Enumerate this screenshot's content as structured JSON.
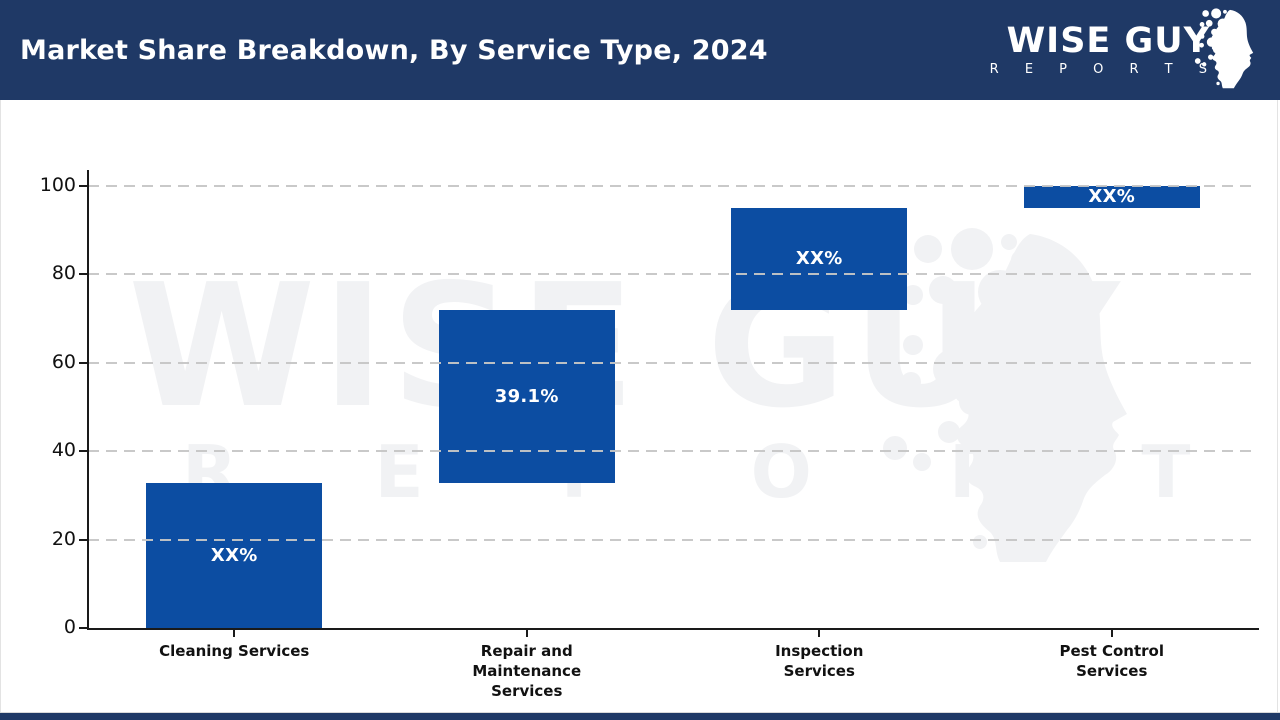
{
  "header": {
    "title": "Market Share Breakdown, By Service Type, 2024",
    "logo": {
      "line1": "WISE GUY",
      "line2": "R E P O R T S"
    }
  },
  "watermark": {
    "line1": "WISE GUY",
    "line2": "R E P O R T S"
  },
  "chart_data": {
    "type": "bar",
    "subtype": "waterfall",
    "title": "Market Share Breakdown, By Service Type, 2024",
    "categories": [
      {
        "lines": [
          "Cleaning Services"
        ]
      },
      {
        "lines": [
          "Repair and",
          "Maintenance",
          "Services"
        ]
      },
      {
        "lines": [
          "Inspection",
          "Services"
        ]
      },
      {
        "lines": [
          "Pest Control",
          "Services"
        ]
      }
    ],
    "segments": [
      {
        "start": 0,
        "end": 32.8,
        "label": "XX%"
      },
      {
        "start": 32.8,
        "end": 71.9,
        "label": "39.1%"
      },
      {
        "start": 71.9,
        "end": 95.1,
        "label": "XX%"
      },
      {
        "start": 95.1,
        "end": 100,
        "label": "XX%"
      }
    ],
    "yticks": [
      0,
      20,
      40,
      60,
      80,
      100
    ],
    "ylim": [
      0,
      100
    ],
    "xlabel": "",
    "ylabel": "",
    "grid": "horizontal-dashed",
    "legend": "none",
    "bar_color": "#0c4da2",
    "bar_label_color": "#ffffff",
    "header_color": "#1f3966",
    "watermark_color": "#f1f2f4"
  }
}
